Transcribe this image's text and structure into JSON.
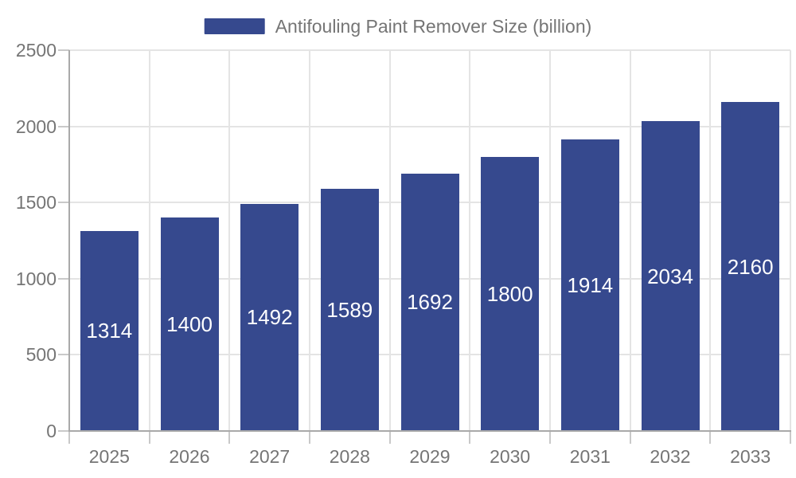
{
  "legend": {
    "label": "Antifouling Paint Remover Size (billion)",
    "swatch_color": "#36498E",
    "text_color": "#757575"
  },
  "chart_data": {
    "type": "bar",
    "title": "Antifouling Paint Remover Size (billion)",
    "categories": [
      "2025",
      "2026",
      "2027",
      "2028",
      "2029",
      "2030",
      "2031",
      "2032",
      "2033"
    ],
    "values": [
      1314,
      1400,
      1492,
      1589,
      1692,
      1800,
      1914,
      2034,
      2160
    ],
    "xlabel": "",
    "ylabel": "",
    "ylim": [
      0,
      2500
    ],
    "yticks": [
      0,
      500,
      1000,
      1500,
      2000,
      2500
    ],
    "grid": true,
    "legend_position": "top-center",
    "bar_color": "#36498E",
    "value_label_color": "#FFFFFF",
    "tick_label_color": "#757575",
    "gridline_color": "#E4E4E4",
    "axis_line_color": "#A9A9A9",
    "tick_mark_color": "#C9C9C9",
    "background_color": "#FFFFFF"
  }
}
